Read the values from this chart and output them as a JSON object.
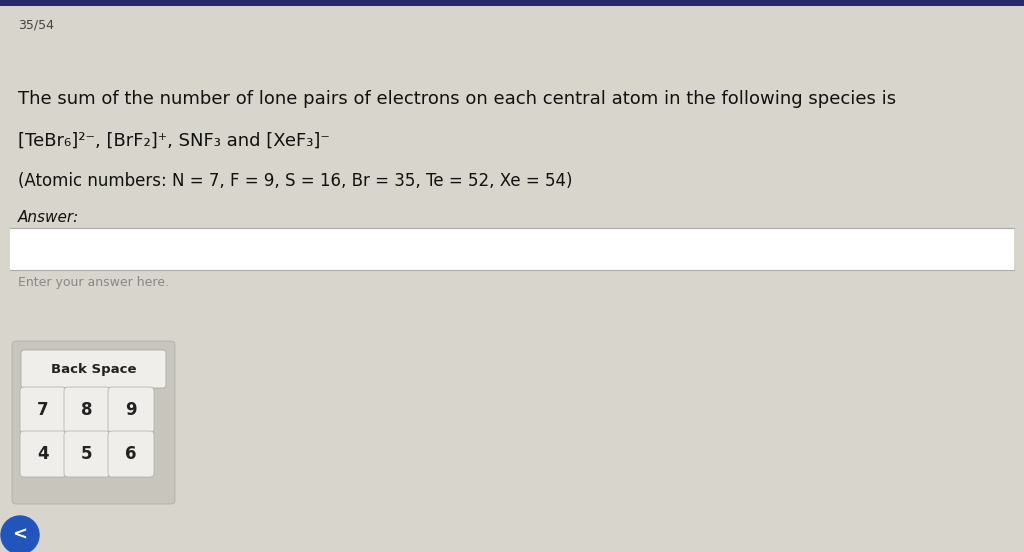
{
  "background_color": "#c8c8c8",
  "content_bg": "#d8d5cc",
  "question_number": "35/54",
  "question_number_fontsize": 9,
  "question_number_color": "#444444",
  "main_text": "The sum of the number of lone pairs of electrons on each central atom in the following species is",
  "main_text_fontsize": 13,
  "main_text_color": "#111111",
  "formula_line": "[TeBr₆]²⁻, [BrF₂]⁺, SNF₃ and [XeF₃]⁻",
  "formula_fontsize": 13,
  "atomic_numbers": "(Atomic numbers: N = 7, F = 9, S = 16, Br = 35, Te = 52, Xe = 54)",
  "atomic_numbers_fontsize": 12,
  "answer_label": "Answer:",
  "answer_label_fontsize": 11,
  "placeholder_text": "Enter your answer here.",
  "placeholder_fontsize": 9,
  "placeholder_color": "#888888",
  "back_space_label": "Back Space",
  "keypad_numbers": [
    [
      "7",
      "8",
      "9"
    ],
    [
      "4",
      "5",
      "6"
    ]
  ],
  "keypad_box_bg": "#d8d5cc",
  "keypad_key_bg": "#f0eeea",
  "keypad_text_color": "#222222",
  "back_space_bg": "#f0eeea",
  "back_space_border": "#aaaaaa",
  "answer_box_bg": "#ffffff",
  "answer_box_border": "#aaaaaa",
  "circle_color": "#2255bb",
  "circle_text": "<",
  "circle_text_color": "#ffffff",
  "top_bar_color": "#2a2a6a",
  "top_bar_height": 6,
  "keypad_container_bg": "#c8c5bc",
  "keypad_container_border": "#aaaaaa"
}
